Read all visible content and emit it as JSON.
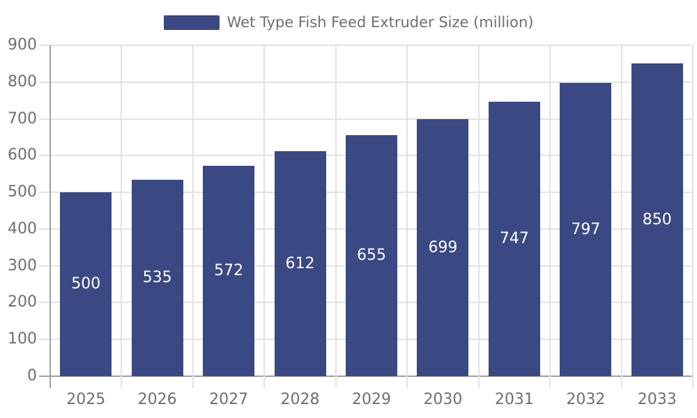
{
  "chart_data": {
    "type": "bar",
    "title": "Wet Type Fish Feed Extruder Size (million)",
    "legend": [
      "Wet Type Fish Feed Extruder Size (million)"
    ],
    "legend_position": "top",
    "categories": [
      "2025",
      "2026",
      "2027",
      "2028",
      "2029",
      "2030",
      "2031",
      "2032",
      "2033"
    ],
    "values": [
      500,
      535,
      572,
      612,
      655,
      699,
      747,
      797,
      850
    ],
    "xlabel": "",
    "ylabel": "",
    "ylim": [
      0,
      900
    ],
    "ytick_interval": 100,
    "ytick_labels": [
      "0",
      "100",
      "200",
      "300",
      "400",
      "500",
      "600",
      "700",
      "800",
      "900"
    ],
    "grid": true,
    "value_label_position": "inside-center"
  },
  "colors": {
    "bar": "#3a4883",
    "grid_line": "#e2e2e2",
    "axis_line": "#a0a0a0",
    "tick_text": "#6f6f6f",
    "value_text": "#ffffff",
    "background": "#ffffff"
  }
}
